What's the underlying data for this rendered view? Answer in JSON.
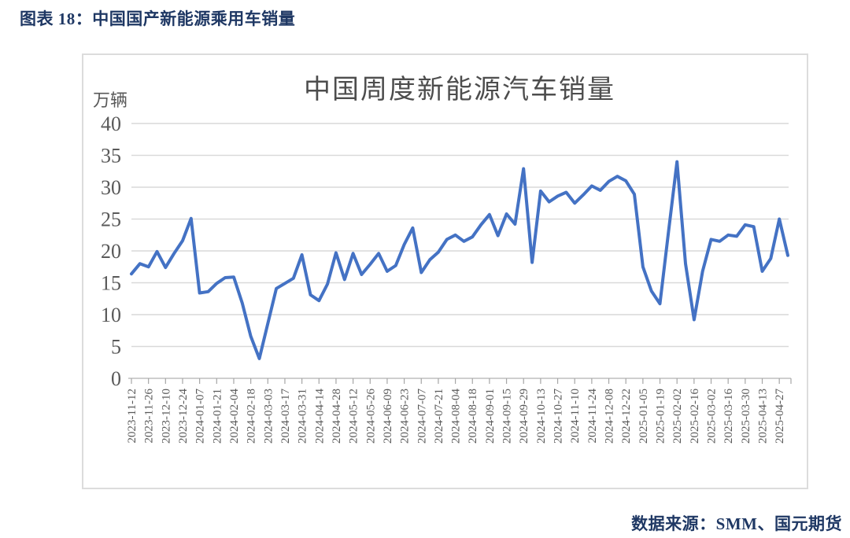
{
  "header": {
    "label": "图表 18：中国国产新能源乘用车销量"
  },
  "footer": {
    "source": "数据来源：SMM、国元期货"
  },
  "colors": {
    "accent_text": "#1F3864",
    "title_text": "#4d4d4d",
    "axis_text": "#595959",
    "gridline": "#D9D9D9",
    "axis_line": "#BFBFBF",
    "tick": "#A6A6A6",
    "line": "#4472C4",
    "frame_border": "#DCDCDC",
    "background": "#FFFFFF"
  },
  "chart_data": {
    "type": "line",
    "title": "中国周度新能源汽车销量",
    "y_unit_label": "万辆",
    "xlabel": "",
    "ylabel": "",
    "ylim": [
      0,
      40
    ],
    "y_ticks": [
      0,
      5,
      10,
      15,
      20,
      25,
      30,
      35,
      40
    ],
    "grid": "horizontal",
    "legend": "none",
    "x": [
      "2023-11-12",
      "2023-11-19",
      "2023-11-26",
      "2023-12-03",
      "2023-12-10",
      "2023-12-17",
      "2023-12-24",
      "2023-12-31",
      "2024-01-07",
      "2024-01-14",
      "2024-01-21",
      "2024-01-28",
      "2024-02-04",
      "2024-02-11",
      "2024-02-18",
      "2024-02-25",
      "2024-03-03",
      "2024-03-10",
      "2024-03-17",
      "2024-03-24",
      "2024-03-31",
      "2024-04-07",
      "2024-04-14",
      "2024-04-21",
      "2024-04-28",
      "2024-05-05",
      "2024-05-12",
      "2024-05-19",
      "2024-05-26",
      "2024-06-02",
      "2024-06-09",
      "2024-06-16",
      "2024-06-23",
      "2024-06-30",
      "2024-07-07",
      "2024-07-14",
      "2024-07-21",
      "2024-07-28",
      "2024-08-04",
      "2024-08-11",
      "2024-08-18",
      "2024-08-25",
      "2024-09-01",
      "2024-09-08",
      "2024-09-15",
      "2024-09-22",
      "2024-09-29",
      "2024-10-06",
      "2024-10-13",
      "2024-10-20",
      "2024-10-27",
      "2024-11-03",
      "2024-11-10",
      "2024-11-17",
      "2024-11-24",
      "2024-12-01",
      "2024-12-08",
      "2024-12-15",
      "2024-12-22",
      "2024-12-29",
      "2025-01-05",
      "2025-01-12",
      "2025-01-19",
      "2025-01-26",
      "2025-02-02",
      "2025-02-09",
      "2025-02-16",
      "2025-02-23",
      "2025-03-02",
      "2025-03-09",
      "2025-03-16",
      "2025-03-23",
      "2025-03-30",
      "2025-04-06",
      "2025-04-13",
      "2025-04-20",
      "2025-04-27",
      "2025-05-04"
    ],
    "x_tick_labels": [
      "2023-11-12",
      "2023-11-26",
      "2023-12-10",
      "2023-12-24",
      "2024-01-07",
      "2024-01-21",
      "2024-02-04",
      "2024-02-18",
      "2024-03-03",
      "2024-03-17",
      "2024-03-31",
      "2024-04-14",
      "2024-04-28",
      "2024-05-12",
      "2024-05-26",
      "2024-06-09",
      "2024-06-23",
      "2024-07-07",
      "2024-07-21",
      "2024-08-04",
      "2024-08-18",
      "2024-09-01",
      "2024-09-15",
      "2024-09-29",
      "2024-10-13",
      "2024-10-27",
      "2024-11-10",
      "2024-11-24",
      "2024-12-08",
      "2024-12-22",
      "2025-01-05",
      "2025-01-19",
      "2025-02-02",
      "2025-02-16",
      "2025-03-02",
      "2025-03-16",
      "2025-03-30",
      "2025-04-13",
      "2025-04-27"
    ],
    "series": [
      {
        "name": "中国周度新能源汽车销量",
        "color": "#4472C4",
        "values": [
          16.4,
          18.0,
          17.5,
          19.9,
          17.4,
          19.6,
          21.6,
          25.1,
          13.4,
          13.6,
          14.9,
          15.8,
          15.9,
          11.8,
          6.6,
          3.1,
          8.6,
          14.1,
          14.9,
          15.7,
          19.4,
          13.1,
          12.2,
          14.8,
          19.7,
          15.5,
          19.6,
          16.3,
          17.9,
          19.6,
          16.8,
          17.7,
          21.0,
          23.6,
          16.6,
          18.6,
          19.8,
          21.8,
          22.5,
          21.5,
          22.2,
          24.1,
          25.7,
          22.4,
          25.8,
          24.2,
          32.9,
          18.2,
          29.4,
          27.7,
          28.6,
          29.2,
          27.5,
          28.8,
          30.2,
          29.5,
          30.9,
          31.7,
          31.0,
          28.9,
          17.5,
          13.7,
          11.7,
          23.0,
          34.0,
          18.0,
          9.2,
          16.8,
          21.8,
          21.5,
          22.5,
          22.3,
          24.1,
          23.8,
          16.8,
          18.8,
          25.0,
          19.3
        ]
      }
    ]
  }
}
